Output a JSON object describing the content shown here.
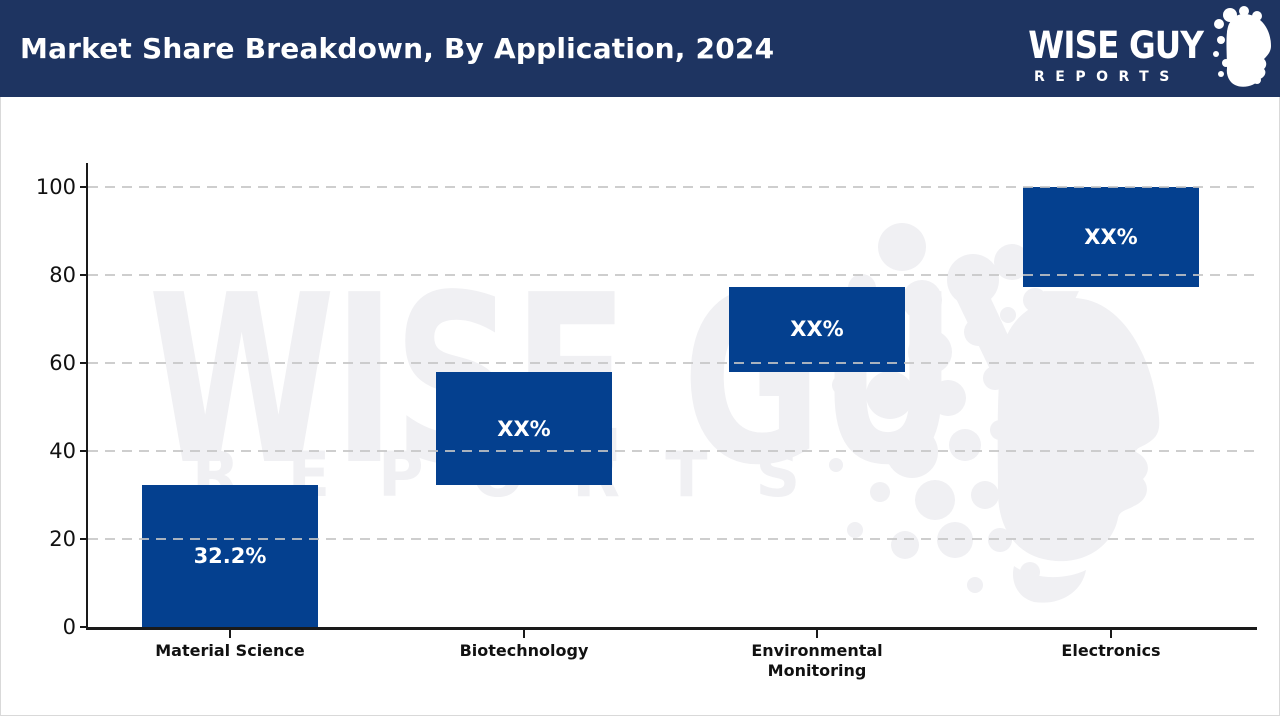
{
  "header": {
    "title": "Market Share Breakdown, By Application, 2024",
    "logo": {
      "line1": "WISE GUY",
      "line2": "REPORTS"
    }
  },
  "watermark": {
    "line1": "WISE GUY",
    "line2": "REPORTS"
  },
  "colors": {
    "header_bg": "#1E3461",
    "bar": "#04408F",
    "grid_dash": "rgba(198,198,198,0.85)",
    "axis": "#1a1a1a",
    "watermark": "#f0f0f3",
    "bar_label": "#ffffff"
  },
  "chart_data": {
    "type": "bar",
    "subtype": "waterfall",
    "title": "Market Share Breakdown, By Application, 2024",
    "categories": [
      "Material Science",
      "Biotechnology",
      "Environmental Monitoring",
      "Electronics"
    ],
    "segments": [
      {
        "category": "Material Science",
        "start": 0,
        "end": 32.2,
        "label": "32.2%"
      },
      {
        "category": "Biotechnology",
        "start": 32.2,
        "end": 58,
        "label": "XX%"
      },
      {
        "category": "Environmental Monitoring",
        "start": 58,
        "end": 77.3,
        "label": "XX%"
      },
      {
        "category": "Electronics",
        "start": 77.3,
        "end": 100,
        "label": "XX%"
      }
    ],
    "ylim": [
      0,
      100
    ],
    "yticks": [
      0,
      20,
      40,
      60,
      80,
      100
    ],
    "grid": "horizontal-dashed",
    "legend": "none",
    "xlabel": "",
    "ylabel": ""
  }
}
